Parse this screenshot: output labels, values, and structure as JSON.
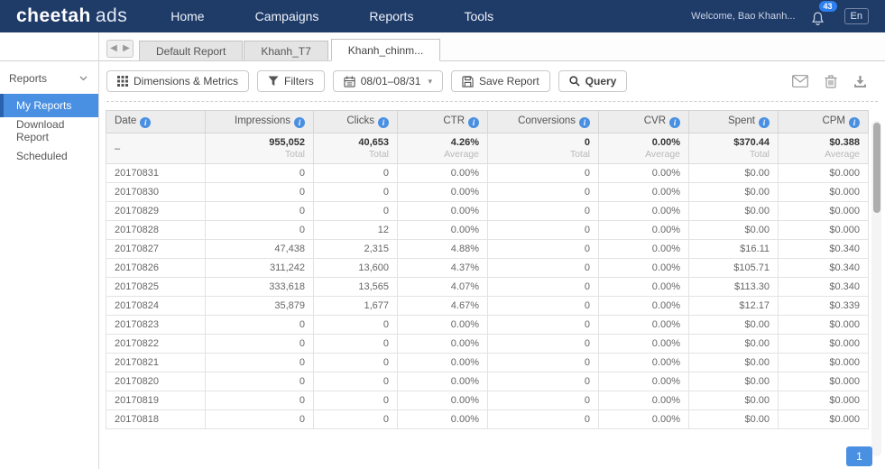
{
  "navbar": {
    "brand_bold": "cheetah",
    "brand_light": "ads",
    "menu": [
      "Home",
      "Campaigns",
      "Reports",
      "Tools"
    ],
    "welcome": "Welcome,  Bao Khanh...",
    "notification_count": "43",
    "language": "En"
  },
  "tabs": [
    {
      "label": "Default Report",
      "active": false
    },
    {
      "label": "Khanh_T7",
      "active": false
    },
    {
      "label": "Khanh_chinm...",
      "active": true
    }
  ],
  "sidebar": {
    "group_label": "Reports",
    "items": [
      {
        "label": "My Reports",
        "active": true
      },
      {
        "label": "Download Report",
        "active": false
      },
      {
        "label": "Scheduled",
        "active": false
      }
    ]
  },
  "toolbar": {
    "dimensions_metrics_label": "Dimensions & Metrics",
    "filters_label": "Filters",
    "date_range": "08/01–08/31",
    "save_report_label": "Save Report",
    "query_label": "Query"
  },
  "colors": {
    "navbar_bg": "#1f3b68",
    "accent_blue": "#4a90e2",
    "badge_blue": "#2d7ff0"
  },
  "chart_data": {
    "type": "table",
    "columns": [
      "Date",
      "Impressions",
      "Clicks",
      "CTR",
      "Conversions",
      "CVR",
      "Spent",
      "CPM"
    ],
    "summary": {
      "date": "–",
      "cells": [
        {
          "value": "955,052",
          "sub": "Total"
        },
        {
          "value": "40,653",
          "sub": "Total"
        },
        {
          "value": "4.26%",
          "sub": "Average"
        },
        {
          "value": "0",
          "sub": "Total"
        },
        {
          "value": "0.00%",
          "sub": "Average"
        },
        {
          "value": "$370.44",
          "sub": "Total"
        },
        {
          "value": "$0.388",
          "sub": "Average"
        }
      ]
    },
    "rows": [
      [
        "20170831",
        "0",
        "0",
        "0.00%",
        "0",
        "0.00%",
        "$0.00",
        "$0.000"
      ],
      [
        "20170830",
        "0",
        "0",
        "0.00%",
        "0",
        "0.00%",
        "$0.00",
        "$0.000"
      ],
      [
        "20170829",
        "0",
        "0",
        "0.00%",
        "0",
        "0.00%",
        "$0.00",
        "$0.000"
      ],
      [
        "20170828",
        "0",
        "12",
        "0.00%",
        "0",
        "0.00%",
        "$0.00",
        "$0.000"
      ],
      [
        "20170827",
        "47,438",
        "2,315",
        "4.88%",
        "0",
        "0.00%",
        "$16.11",
        "$0.340"
      ],
      [
        "20170826",
        "311,242",
        "13,600",
        "4.37%",
        "0",
        "0.00%",
        "$105.71",
        "$0.340"
      ],
      [
        "20170825",
        "333,618",
        "13,565",
        "4.07%",
        "0",
        "0.00%",
        "$113.30",
        "$0.340"
      ],
      [
        "20170824",
        "35,879",
        "1,677",
        "4.67%",
        "0",
        "0.00%",
        "$12.17",
        "$0.339"
      ],
      [
        "20170823",
        "0",
        "0",
        "0.00%",
        "0",
        "0.00%",
        "$0.00",
        "$0.000"
      ],
      [
        "20170822",
        "0",
        "0",
        "0.00%",
        "0",
        "0.00%",
        "$0.00",
        "$0.000"
      ],
      [
        "20170821",
        "0",
        "0",
        "0.00%",
        "0",
        "0.00%",
        "$0.00",
        "$0.000"
      ],
      [
        "20170820",
        "0",
        "0",
        "0.00%",
        "0",
        "0.00%",
        "$0.00",
        "$0.000"
      ],
      [
        "20170819",
        "0",
        "0",
        "0.00%",
        "0",
        "0.00%",
        "$0.00",
        "$0.000"
      ],
      [
        "20170818",
        "0",
        "0",
        "0.00%",
        "0",
        "0.00%",
        "$0.00",
        "$0.000"
      ]
    ]
  },
  "pagination": {
    "page": "1"
  }
}
